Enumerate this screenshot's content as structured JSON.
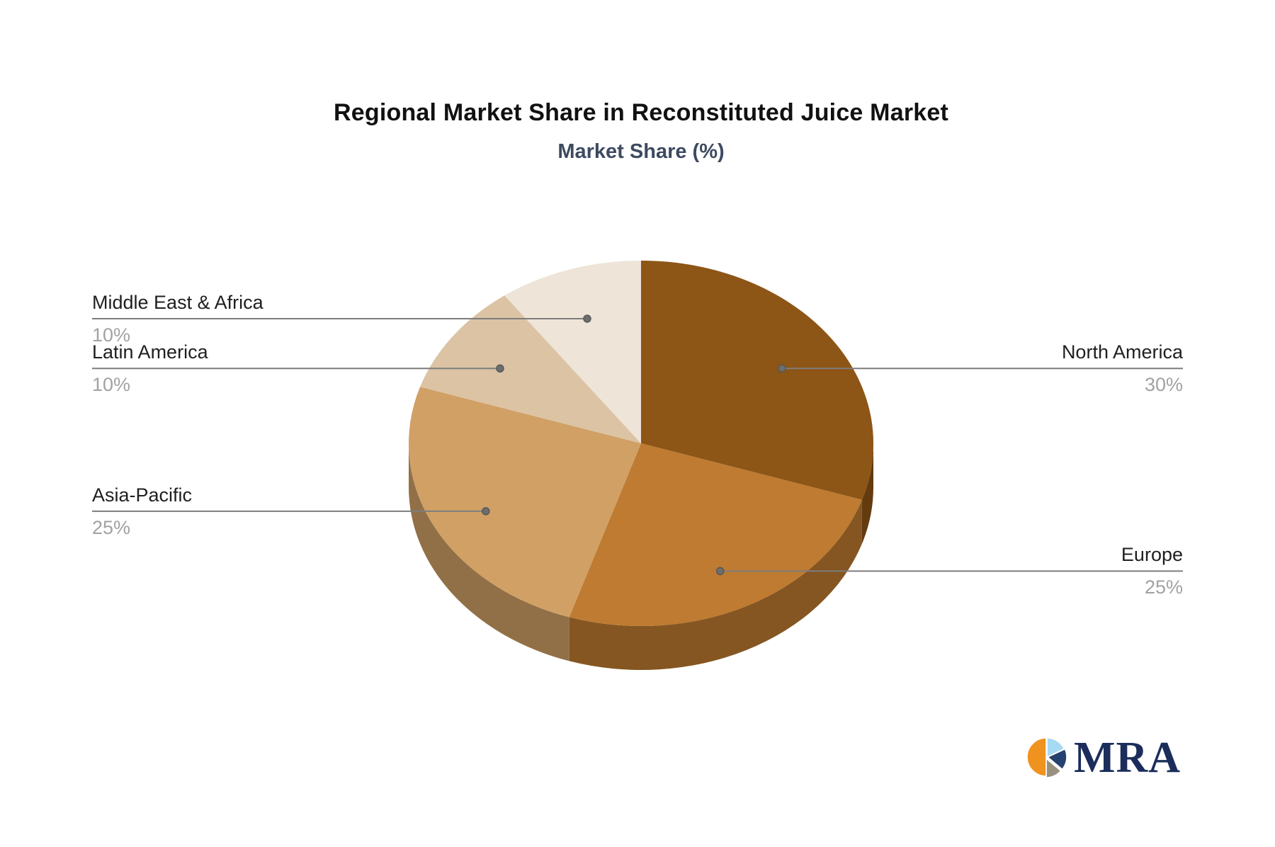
{
  "title": "Regional Market Share in Reconstituted Juice Market",
  "subtitle": "Market Share (%)",
  "chart_data": {
    "type": "pie",
    "style": "3d",
    "title": "Regional Market Share in Reconstituted Juice Market",
    "subtitle": "Market Share (%)",
    "unit": "%",
    "legend_position": "callout-labels",
    "grid": false,
    "start_angle_deg": 0,
    "direction": "clockwise",
    "categories": [
      "North America",
      "Europe",
      "Asia-Pacific",
      "Latin America",
      "Middle East & Africa"
    ],
    "values": [
      30,
      25,
      25,
      10,
      10
    ],
    "slices": [
      {
        "label": "North America",
        "value": 30,
        "pct_label": "30%",
        "color": "#8d5516"
      },
      {
        "label": "Europe",
        "value": 25,
        "pct_label": "25%",
        "color": "#be7b31"
      },
      {
        "label": "Asia-Pacific",
        "value": 25,
        "pct_label": "25%",
        "color": "#d1a065"
      },
      {
        "label": "Latin America",
        "value": 10,
        "pct_label": "10%",
        "color": "#dbc3a4"
      },
      {
        "label": "Middle East & Africa",
        "value": 10,
        "pct_label": "10%",
        "color": "#eee4d8"
      }
    ],
    "callout_colors": {
      "label_text": "#1f1f1f",
      "pct_text": "#a2a2a2",
      "leader_line": "#7d7d7d",
      "leader_dot": "#6e6e6e"
    }
  },
  "logo": {
    "text": "MRA",
    "icon": "pie-chart-icon",
    "text_color": "#1b2d5b",
    "icon_colors": {
      "orange": "#f0921e",
      "light_blue": "#a6d9f2",
      "navy": "#25416f",
      "gray": "#99917f"
    }
  }
}
